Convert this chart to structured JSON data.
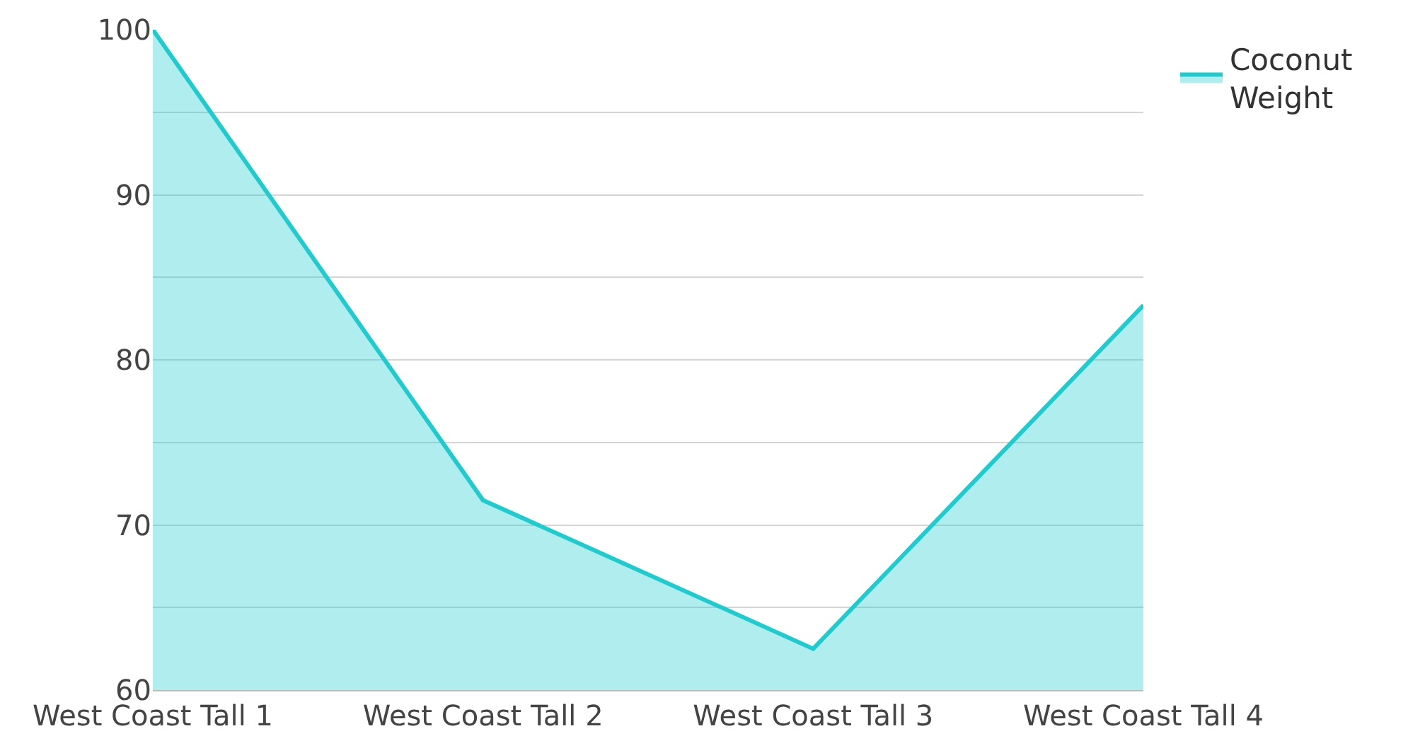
{
  "chart_data": {
    "type": "area",
    "categories": [
      "West Coast Tall 1",
      "West Coast Tall 2",
      "West Coast Tall 3",
      "West Coast Tall 4"
    ],
    "series": [
      {
        "name": "Coconut Weight",
        "color": "#1ecbcf",
        "values": [
          100,
          71.5,
          62.5,
          83.3
        ]
      }
    ],
    "ylim": [
      60,
      100
    ],
    "yticks": [
      60,
      {
        "value": 65,
        "label": null
      },
      70,
      {
        "value": 75,
        "label": null
      },
      80,
      {
        "value": 85,
        "label": null
      },
      90,
      {
        "value": 95,
        "label": null
      },
      100
    ],
    "grid": "y",
    "legend": "top right",
    "marker": "none",
    "line_style": "solid"
  }
}
